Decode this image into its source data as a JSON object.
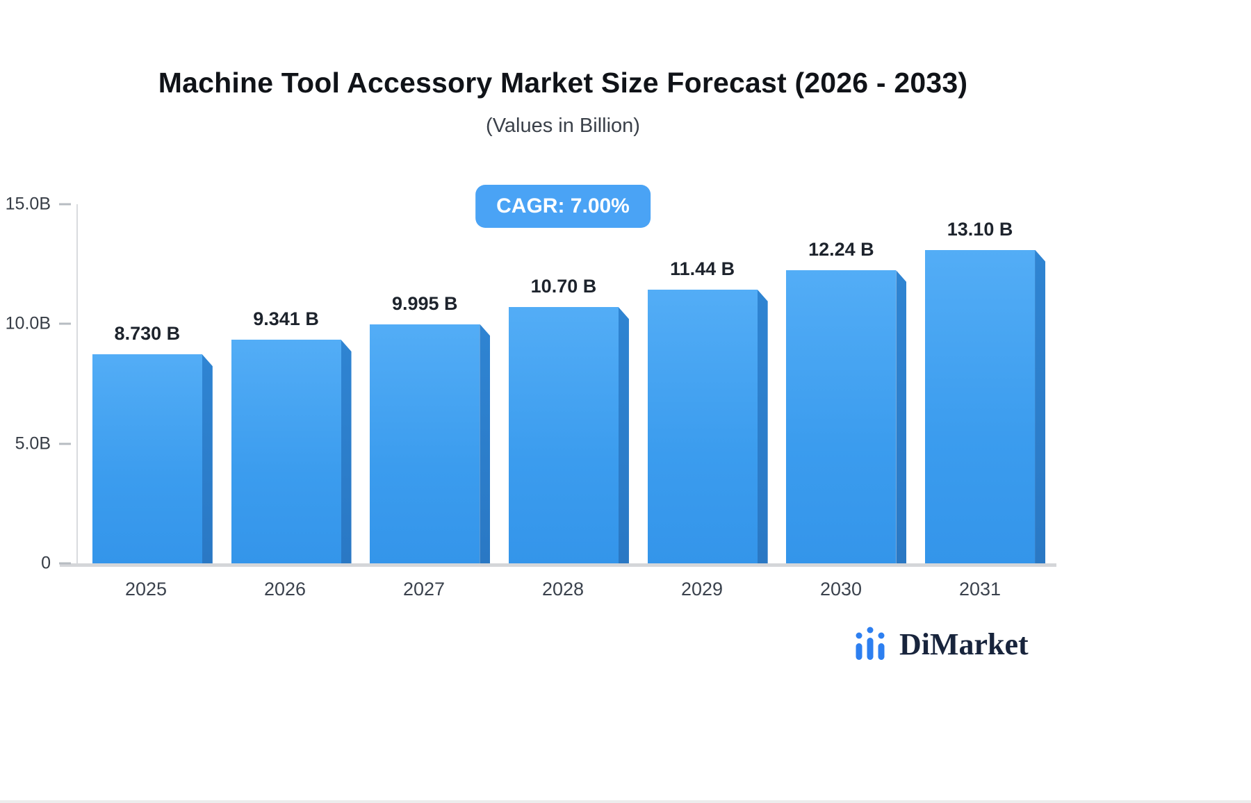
{
  "chart": {
    "title": "Machine Tool Accessory Market Size Forecast (2026 - 2033)",
    "subtitle": "(Values in Billion)",
    "cagr_label": "CAGR: 7.00%"
  },
  "logo": {
    "text": "DiMarket"
  },
  "chart_data": {
    "type": "bar",
    "title": "Machine Tool Accessory Market Size Forecast (2026 - 2033)",
    "subtitle": "(Values in Billion)",
    "annotation": "CAGR: 7.00%",
    "categories": [
      "2025",
      "2026",
      "2027",
      "2028",
      "2029",
      "2030",
      "2031"
    ],
    "values": [
      8.73,
      9.341,
      9.995,
      10.7,
      11.44,
      12.24,
      13.1
    ],
    "value_labels": [
      "8.730 B",
      "9.341 B",
      "9.995 B",
      "10.70 B",
      "11.44 B",
      "12.24 B",
      "13.10 B"
    ],
    "xlabel": "",
    "ylabel": "",
    "ylim": [
      0,
      15
    ],
    "yticks": [
      {
        "value": 0,
        "label": "0"
      },
      {
        "value": 5,
        "label": "5.0B"
      },
      {
        "value": 10,
        "label": "10.0B"
      },
      {
        "value": 15,
        "label": "15.0B"
      }
    ],
    "grid": false,
    "legend_position": "none",
    "colors": {
      "bar_top": "#53adf6",
      "bar_bottom": "#3495ea",
      "bar_side": "#2a78c4",
      "badge": "#4aa3f5",
      "logo_blue": "#2d7ff0",
      "logo_navy": "#18243c"
    }
  }
}
